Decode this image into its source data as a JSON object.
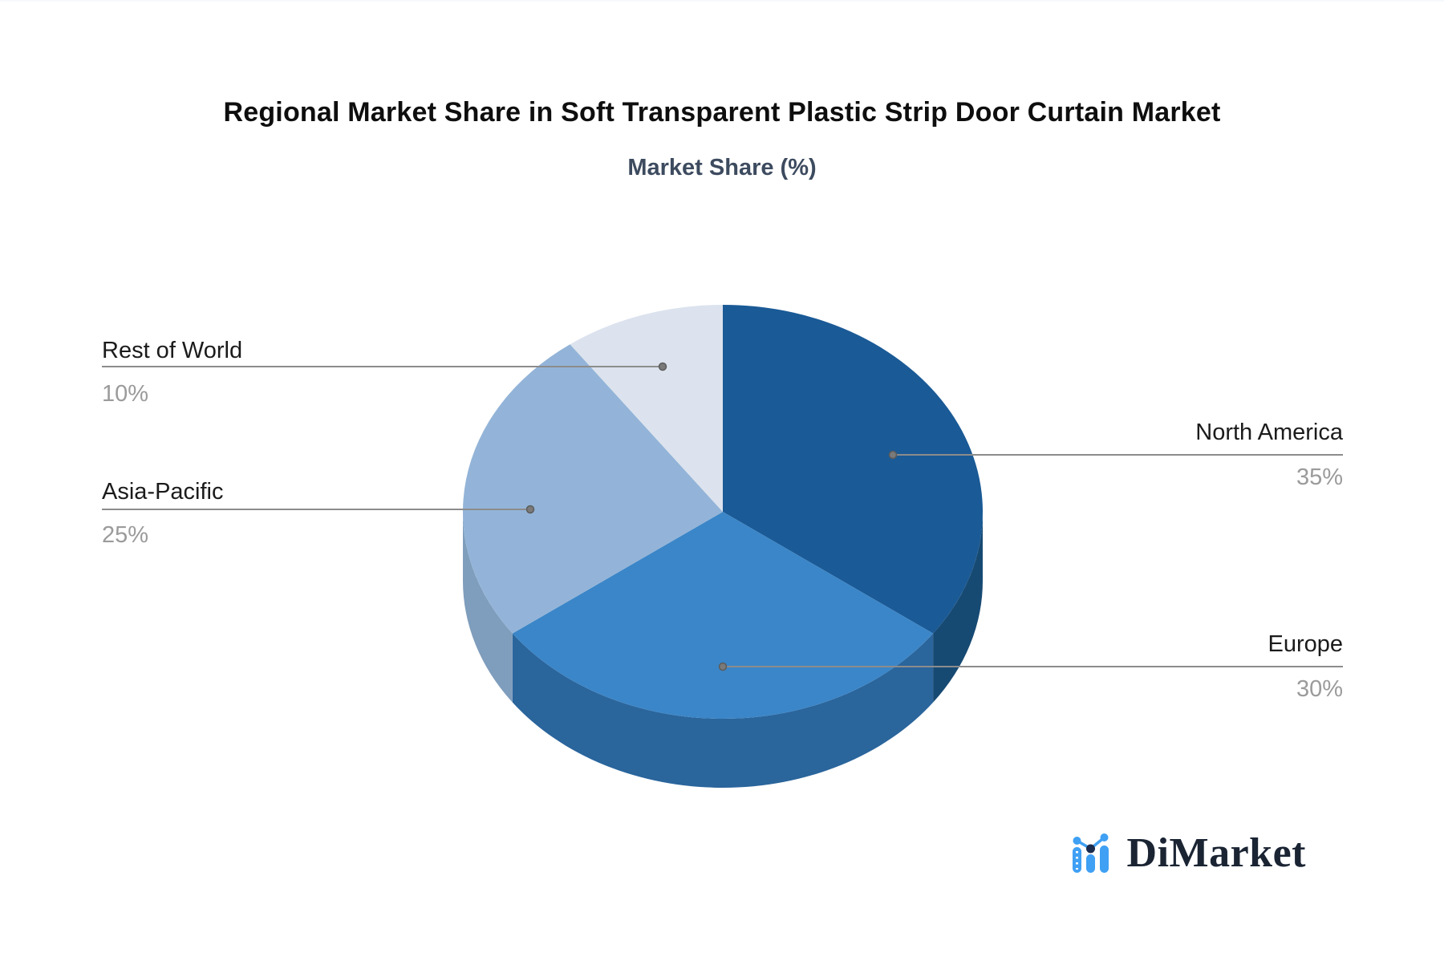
{
  "header": {
    "title": "Regional Market Share in Soft Transparent Plastic Strip Door Curtain Market",
    "subtitle": "Market Share (%)"
  },
  "chart_data": {
    "type": "pie",
    "style": "3d",
    "title": "Regional Market Share in Soft Transparent Plastic Strip Door Curtain Market",
    "subtitle": "Market Share (%)",
    "unit": "%",
    "direction": "clockwise",
    "start_angle_deg": 0,
    "legend_position": "none",
    "series": [
      {
        "label": "North America",
        "value": 35,
        "percent_label": "35%",
        "color": "#1A5A96",
        "side_color": "#174A73"
      },
      {
        "label": "Europe",
        "value": 30,
        "percent_label": "30%",
        "color": "#3B86C8",
        "side_color": "#2A659C"
      },
      {
        "label": "Asia-Pacific",
        "value": 25,
        "percent_label": "25%",
        "color": "#93B4D8",
        "side_color": "#7F9DBC"
      },
      {
        "label": "Rest of World",
        "value": 10,
        "percent_label": "10%",
        "color": "#DCE3EE",
        "side_color": "#C6CFDD"
      }
    ],
    "label_style": {
      "line_color": "#8C8C8C",
      "dot_fill": "#7A7A7A",
      "dot_stroke": "#5C5C5C",
      "name_color": "#1B1B1B",
      "percent_color": "#9B9B9B"
    }
  },
  "branding": {
    "logo_text": "DiMarket",
    "logo_icon": "bar-line-chart-icon",
    "logo_text_color": "#1A2433",
    "logo_accent_color": "#3FA0F4",
    "logo_dark_dot_color": "#1B2B4D"
  }
}
